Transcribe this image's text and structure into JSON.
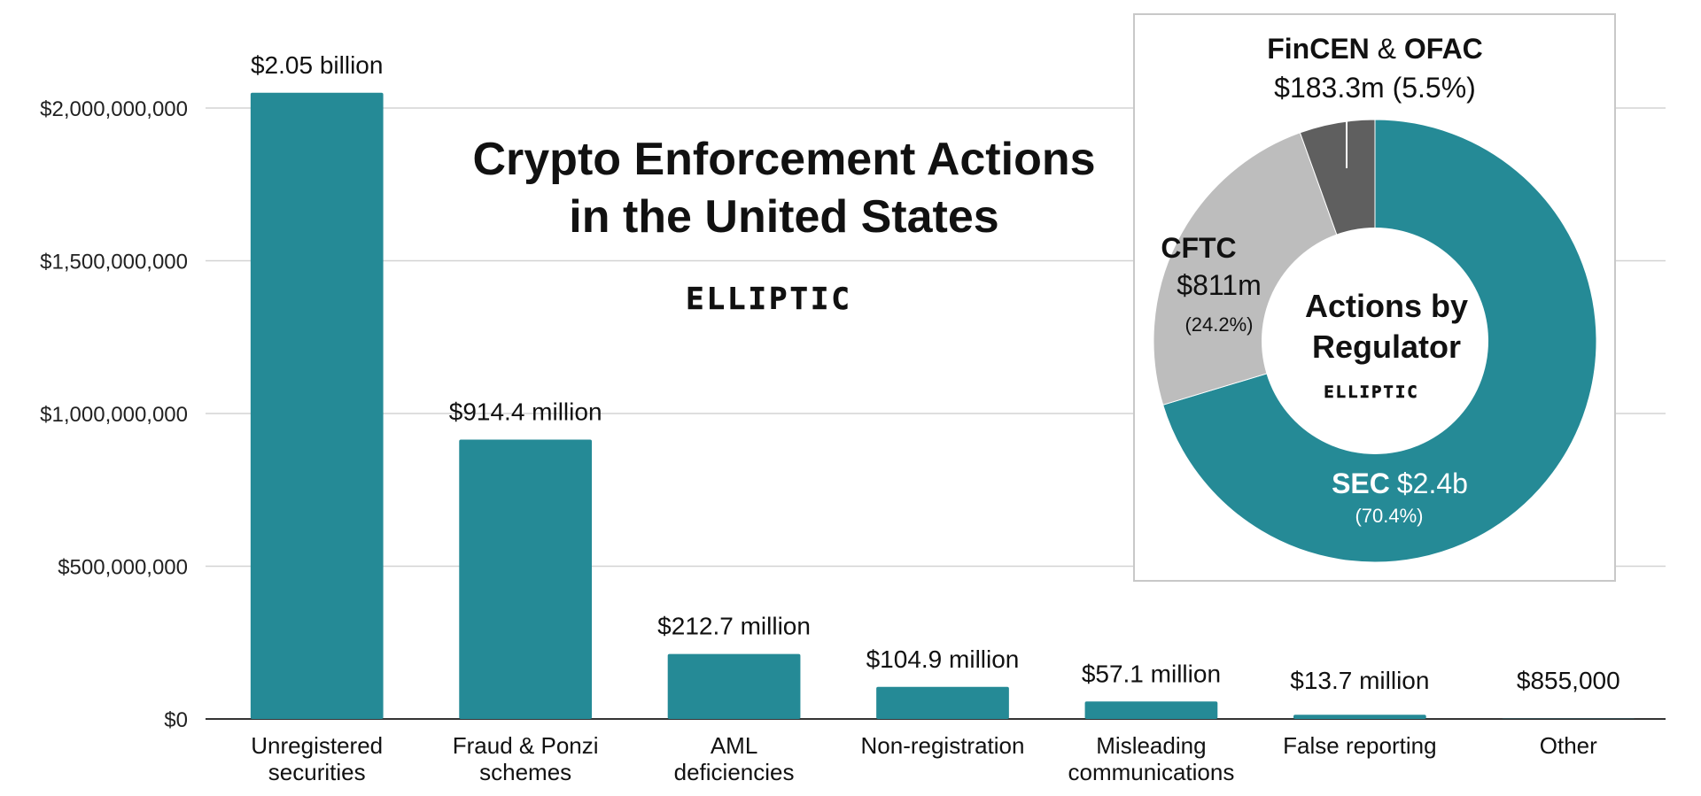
{
  "chart_data": [
    {
      "type": "bar",
      "title": "Crypto Enforcement Actions in the United States",
      "title_lines": [
        "Crypto Enforcement Actions",
        "in the United States"
      ],
      "brand": "ELLIPTIC",
      "categories": [
        [
          "Unregistered",
          "securities"
        ],
        [
          "Fraud & Ponzi",
          "schemes"
        ],
        [
          "AML",
          "deficiencies"
        ],
        [
          "Non-registration"
        ],
        [
          "Misleading",
          "communications"
        ],
        [
          "False reporting"
        ],
        [
          "Other"
        ]
      ],
      "values": [
        2050000000,
        914400000,
        212700000,
        104900000,
        57100000,
        13700000,
        855000
      ],
      "data_labels": [
        "$2.05 billion",
        "$914.4 million",
        "$212.7 million",
        "$104.9 million",
        "$57.1 million",
        "$13.7 million",
        "$855,000"
      ],
      "ylim": [
        0,
        2000000000
      ],
      "yticks": [
        0,
        500000000,
        1000000000,
        1500000000,
        2000000000
      ],
      "ytick_labels": [
        "$0",
        "$500,000,000",
        "$1,000,000,000",
        "$1,500,000,000",
        "$2,000,000,000"
      ],
      "grid": true,
      "xlabel": "",
      "ylabel": "",
      "color": "#258a96"
    },
    {
      "type": "pie",
      "title": "Actions by Regulator",
      "title_lines": [
        "Actions by",
        "Regulator"
      ],
      "brand": "ELLIPTIC",
      "donut": true,
      "slices": [
        {
          "name": "SEC",
          "value_label": "$2.4b",
          "pct_label": "(70.4%)",
          "percent": 70.4,
          "color": "#258a96",
          "text_color": "#ffffff"
        },
        {
          "name": "CFTC",
          "value_label": "$811m",
          "pct_label": "(24.2%)",
          "percent": 24.2,
          "color": "#bdbdbd",
          "text_color": "#111111"
        },
        {
          "name": "FinCEN & OFAC",
          "name_parts": [
            "FinCEN",
            " & ",
            "OFAC"
          ],
          "value_label": "$183.3m (5.5%)",
          "percent": 5.5,
          "color": "#5f5f5f",
          "text_color": "#111111"
        }
      ]
    }
  ]
}
